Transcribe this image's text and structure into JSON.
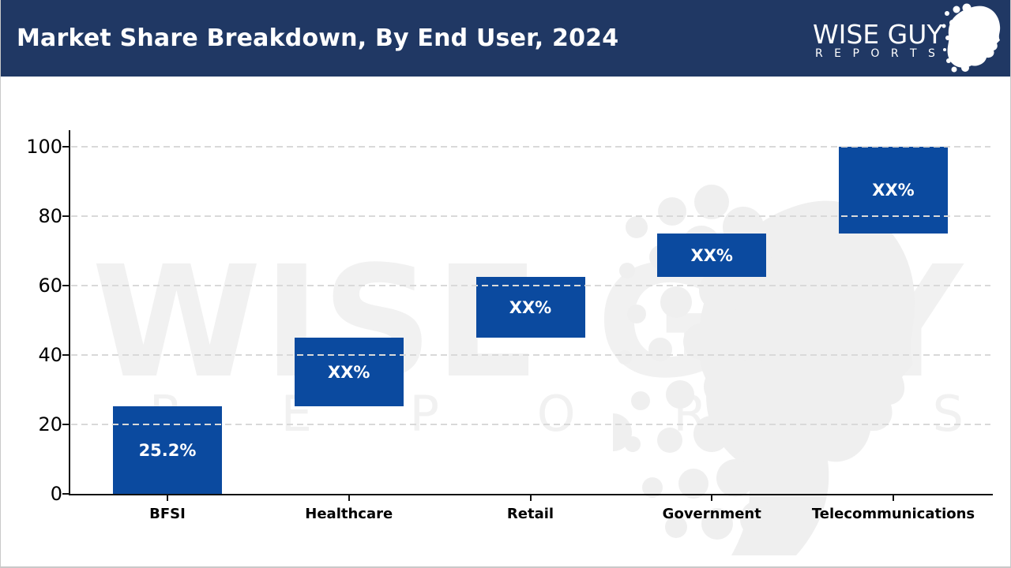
{
  "header": {
    "title": "Market Share Breakdown, By End User, 2024",
    "logo": {
      "name": "WISE GUY",
      "subtitle": "R E P O R T S"
    }
  },
  "watermark": {
    "line1": "WISE GUY",
    "line2": "R E P O R T S"
  },
  "colors": {
    "header_bg": "#203864",
    "bar": "#0b4a9f",
    "bar_label": "#ffffff",
    "grid": "#d9d9d9",
    "axis": "#111111",
    "text": "#000000",
    "watermark": "#f1f1f1",
    "frame_border": "#c9c9c9"
  },
  "chart_data": {
    "type": "bar",
    "subtype": "floating-waterfall",
    "title": "Market Share Breakdown, By End User, 2024",
    "categories": [
      "BFSI",
      "Healthcare",
      "Retail",
      "Government",
      "Telecommunications"
    ],
    "bars": [
      {
        "category": "BFSI",
        "start": 0,
        "end": 25.2,
        "label": "25.2%"
      },
      {
        "category": "Healthcare",
        "start": 25.2,
        "end": 45,
        "label": "XX%"
      },
      {
        "category": "Retail",
        "start": 45,
        "end": 62.5,
        "label": "XX%"
      },
      {
        "category": "Government",
        "start": 62.5,
        "end": 75,
        "label": "XX%"
      },
      {
        "category": "Telecommunications",
        "start": 75,
        "end": 100,
        "label": "XX%"
      }
    ],
    "xlabel": "",
    "ylabel": "",
    "ylim": [
      0,
      105
    ],
    "yticks": [
      0,
      20,
      40,
      60,
      80,
      100
    ],
    "grid": "dashed-horizontal",
    "legend": "none"
  }
}
